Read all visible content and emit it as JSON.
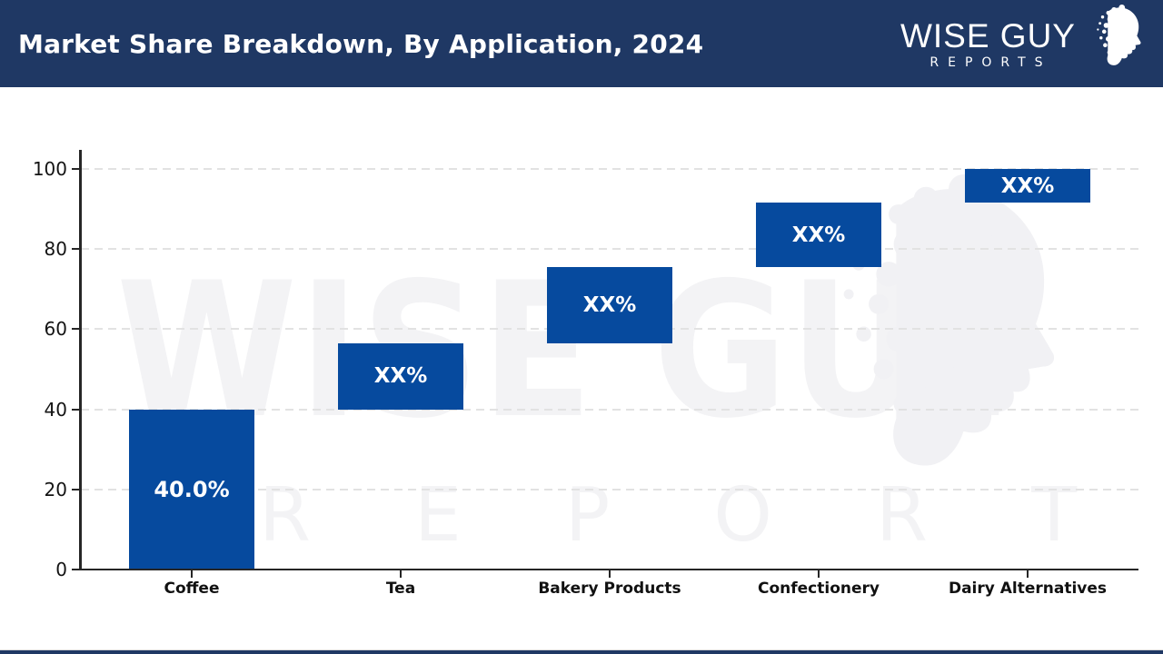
{
  "header": {
    "title": "Market Share Breakdown, By Application, 2024",
    "logo": {
      "line1": "WISE GUY",
      "line2": "REPORTS"
    }
  },
  "watermark": {
    "line1": "WISE GUY",
    "line2": "R E P O R T S"
  },
  "colors": {
    "header_bg": "#1f3864",
    "bar": "#064a9e",
    "bar_label_text": "#ffffff",
    "axis": "#262626",
    "gridline": "#e2e2e2",
    "tick_text": "#141414",
    "watermark": "#f3f3f5"
  },
  "chart_data": {
    "type": "bar",
    "subtype": "waterfall",
    "title": "Market Share Breakdown, By Application, 2024",
    "xlabel": "",
    "ylabel": "",
    "categories": [
      "Coffee",
      "Tea",
      "Bakery Products",
      "Confectionery",
      "Dairy Alternatives"
    ],
    "segments": [
      {
        "category": "Coffee",
        "start": 0,
        "end": 40,
        "label": "40.0%"
      },
      {
        "category": "Tea",
        "start": 40,
        "end": 56.5,
        "label": "XX%"
      },
      {
        "category": "Bakery Products",
        "start": 56.5,
        "end": 75.5,
        "label": "XX%"
      },
      {
        "category": "Confectionery",
        "start": 75.5,
        "end": 91.5,
        "label": "XX%"
      },
      {
        "category": "Dairy Alternatives",
        "start": 91.5,
        "end": 100,
        "label": "XX%"
      }
    ],
    "yticks": [
      0,
      20,
      40,
      60,
      80,
      100
    ],
    "ylim": [
      0,
      104.5
    ],
    "grid": "horizontal-dashed",
    "legend": "none"
  }
}
